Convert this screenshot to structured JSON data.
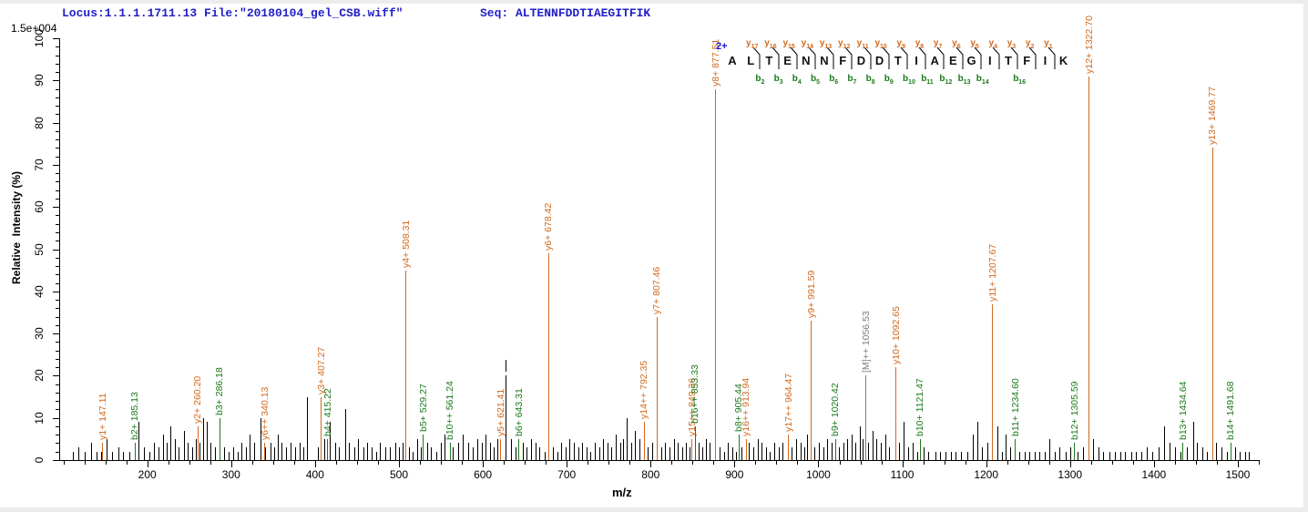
{
  "header": {
    "locus_file": "Locus:1.1.1.1711.13 File:\"20180104_gel_CSB.wiff\"",
    "seq": "Seq: ALTENNFDDTIAEGITFIK"
  },
  "colors": {
    "header_blue": "#2121c8",
    "charge_blue": "#1515d0",
    "y_ion_orange": "#d2691e",
    "b_ion_green": "#1b7a1b",
    "precursor_gray": "#7d7d7d",
    "noise_black": "#000000"
  },
  "fragment_map": {
    "charge": "2+",
    "letters": [
      "A",
      "L",
      "T",
      "E",
      "N",
      "N",
      "F",
      "D",
      "D",
      "T",
      "I",
      "A",
      "E",
      "G",
      "I",
      "T",
      "F",
      "I",
      "K"
    ],
    "dividers": [
      {
        "y": "y17",
        "b": "b2"
      },
      {
        "y": "y16",
        "b": "b3"
      },
      {
        "y": "y15",
        "b": "b4"
      },
      {
        "y": "y14",
        "b": "b5"
      },
      {
        "y": "y13",
        "b": "b6"
      },
      {
        "y": "y12",
        "b": "b7"
      },
      {
        "y": "y11",
        "b": "b8"
      },
      {
        "y": "y10",
        "b": "b9"
      },
      {
        "y": "y9",
        "b": "b10"
      },
      {
        "y": "y8",
        "b": "b11"
      },
      {
        "y": "y7",
        "b": "b12"
      },
      {
        "y": "y6",
        "b": "b13"
      },
      {
        "y": "y5",
        "b": "b14"
      },
      {
        "y": "y4",
        "b": null
      },
      {
        "y": "y3",
        "b": "b16"
      },
      {
        "y": "y2",
        "b": null
      },
      {
        "y": "y1",
        "b": null
      }
    ]
  },
  "chart_data": {
    "type": "bar",
    "subtype": "ms2-peak-spectrum",
    "title": "",
    "xlabel": "m/z",
    "ylabel": "Relative  Intensity (%)",
    "max_intensity": "1.5e+004",
    "xlim": [
      95,
      1525
    ],
    "ylim": [
      0,
      100
    ],
    "x_major_ticks": [
      200,
      300,
      400,
      500,
      600,
      700,
      800,
      900,
      1000,
      1100,
      1200,
      1300,
      1400,
      1500
    ],
    "x_minor_step": 25,
    "y_major_step": 10,
    "y_minor_step": 2,
    "grid": false,
    "annotated_peaks": [
      {
        "label": "y1+ 147.11",
        "mz": 147.11,
        "intensity_pct": 4,
        "ion": "y"
      },
      {
        "label": "b2+ 185.13",
        "mz": 185.13,
        "intensity_pct": 4,
        "ion": "b"
      },
      {
        "label": "y2+ 260.20",
        "mz": 260.2,
        "intensity_pct": 8,
        "ion": "y"
      },
      {
        "label": "b3+ 286.18",
        "mz": 286.18,
        "intensity_pct": 10,
        "ion": "b"
      },
      {
        "label": "y6++ 340.13",
        "mz": 340.13,
        "intensity_pct": 4,
        "ion": "y"
      },
      {
        "label": "y3+ 407.27",
        "mz": 407.27,
        "intensity_pct": 15,
        "ion": "y"
      },
      {
        "label": "b4+ 415.22",
        "mz": 415.22,
        "intensity_pct": 5,
        "ion": "b"
      },
      {
        "label": "y4+ 508.31",
        "mz": 508.31,
        "intensity_pct": 45,
        "ion": "y"
      },
      {
        "label": "b5+ 529.27",
        "mz": 529.27,
        "intensity_pct": 6,
        "ion": "b"
      },
      {
        "label": "b10++ 561.24",
        "mz": 561.24,
        "intensity_pct": 4,
        "ion": "b"
      },
      {
        "label": "y5+ 621.41",
        "mz": 621.41,
        "intensity_pct": 5,
        "ion": "y"
      },
      {
        "label": "b6+ 643.31",
        "mz": 643.31,
        "intensity_pct": 5,
        "ion": "b"
      },
      {
        "label": "y6+ 678.42",
        "mz": 678.42,
        "intensity_pct": 49,
        "ion": "y"
      },
      {
        "label": "y14++ 792.35",
        "mz": 792.35,
        "intensity_pct": 9,
        "ion": "y"
      },
      {
        "label": "y7+ 807.46",
        "mz": 807.46,
        "intensity_pct": 34,
        "ion": "y"
      },
      {
        "label": "y15++ 849.36",
        "mz": 849.36,
        "intensity_pct": 5,
        "ion": "y"
      },
      {
        "label": "b16++ 853.33",
        "mz": 853.33,
        "intensity_pct": 8,
        "ion": "b"
      },
      {
        "label": "y8+ 877.51",
        "mz": 877.51,
        "intensity_pct": 88,
        "ion": "y"
      },
      {
        "label": "b8+ 905.44",
        "mz": 905.44,
        "intensity_pct": 6,
        "ion": "b"
      },
      {
        "label": "y16++ 913.94",
        "mz": 913.94,
        "intensity_pct": 5,
        "ion": "y"
      },
      {
        "label": "y17++ 964.47",
        "mz": 964.47,
        "intensity_pct": 6,
        "ion": "y"
      },
      {
        "label": "y9+ 991.59",
        "mz": 991.59,
        "intensity_pct": 33,
        "ion": "y"
      },
      {
        "label": "b9+ 1020.42",
        "mz": 1020.42,
        "intensity_pct": 5,
        "ion": "b"
      },
      {
        "label": "[M]++ 1056.53",
        "mz": 1056.53,
        "intensity_pct": 20,
        "ion": "M"
      },
      {
        "label": "y10+ 1092.65",
        "mz": 1092.65,
        "intensity_pct": 22,
        "ion": "y"
      },
      {
        "label": "b10+ 1121.47",
        "mz": 1121.47,
        "intensity_pct": 5,
        "ion": "b"
      },
      {
        "label": "y11+ 1207.67",
        "mz": 1207.67,
        "intensity_pct": 37,
        "ion": "y"
      },
      {
        "label": "b11+ 1234.60",
        "mz": 1234.6,
        "intensity_pct": 5,
        "ion": "b"
      },
      {
        "label": "b12+ 1305.59",
        "mz": 1305.59,
        "intensity_pct": 4,
        "ion": "b"
      },
      {
        "label": "y12+ 1322.70",
        "mz": 1322.7,
        "intensity_pct": 91,
        "ion": "y"
      },
      {
        "label": "b13+ 1434.64",
        "mz": 1434.64,
        "intensity_pct": 4,
        "ion": "b"
      },
      {
        "label": "y13+ 1469.77",
        "mz": 1469.77,
        "intensity_pct": 74,
        "ion": "y"
      },
      {
        "label": "b14+ 1491.68",
        "mz": 1491.68,
        "intensity_pct": 4,
        "ion": "b"
      }
    ],
    "floating_tick": {
      "mz": 628,
      "from_pct": 21,
      "to_pct": 23.8
    },
    "noise_peaks": [
      [
        112,
        2
      ],
      [
        118,
        3
      ],
      [
        126,
        2
      ],
      [
        134,
        4
      ],
      [
        140,
        2
      ],
      [
        146,
        2
      ],
      [
        152,
        5
      ],
      [
        158,
        2
      ],
      [
        166,
        3
      ],
      [
        172,
        2
      ],
      [
        179,
        2
      ],
      [
        190,
        9
      ],
      [
        196,
        3
      ],
      [
        203,
        2
      ],
      [
        208,
        4
      ],
      [
        214,
        3
      ],
      [
        219,
        6
      ],
      [
        224,
        4
      ],
      [
        228,
        8
      ],
      [
        233,
        5
      ],
      [
        238,
        3
      ],
      [
        244,
        7
      ],
      [
        249,
        4
      ],
      [
        254,
        3
      ],
      [
        258,
        5
      ],
      [
        263,
        4
      ],
      [
        267,
        10
      ],
      [
        271,
        9
      ],
      [
        276,
        4
      ],
      [
        281,
        3
      ],
      [
        287,
        2
      ],
      [
        292,
        3
      ],
      [
        297,
        2
      ],
      [
        303,
        3
      ],
      [
        308,
        2
      ],
      [
        313,
        4
      ],
      [
        318,
        3
      ],
      [
        323,
        6
      ],
      [
        328,
        4
      ],
      [
        335,
        10
      ],
      [
        341,
        3
      ],
      [
        347,
        4
      ],
      [
        352,
        3
      ],
      [
        356,
        6
      ],
      [
        361,
        4
      ],
      [
        366,
        3
      ],
      [
        371,
        4
      ],
      [
        377,
        3
      ],
      [
        382,
        4
      ],
      [
        386,
        3
      ],
      [
        391,
        15
      ],
      [
        404,
        3
      ],
      [
        411,
        5
      ],
      [
        418,
        9
      ],
      [
        424,
        4
      ],
      [
        429,
        3
      ],
      [
        436,
        12
      ],
      [
        441,
        4
      ],
      [
        447,
        3
      ],
      [
        452,
        5
      ],
      [
        458,
        3
      ],
      [
        463,
        4
      ],
      [
        468,
        3
      ],
      [
        473,
        2
      ],
      [
        478,
        4
      ],
      [
        484,
        3
      ],
      [
        490,
        3
      ],
      [
        496,
        4
      ],
      [
        501,
        3
      ],
      [
        505,
        4
      ],
      [
        512,
        3
      ],
      [
        517,
        2
      ],
      [
        522,
        5
      ],
      [
        527,
        3
      ],
      [
        534,
        4
      ],
      [
        539,
        3
      ],
      [
        545,
        2
      ],
      [
        550,
        4
      ],
      [
        555,
        6
      ],
      [
        565,
        3
      ],
      [
        571,
        4
      ],
      [
        577,
        6
      ],
      [
        583,
        4
      ],
      [
        589,
        3
      ],
      [
        594,
        5
      ],
      [
        599,
        4
      ],
      [
        604,
        6
      ],
      [
        609,
        4
      ],
      [
        614,
        3
      ],
      [
        618,
        5
      ],
      [
        628,
        20
      ],
      [
        634,
        5
      ],
      [
        640,
        3
      ],
      [
        648,
        4
      ],
      [
        653,
        3
      ],
      [
        658,
        5
      ],
      [
        663,
        4
      ],
      [
        668,
        3
      ],
      [
        674,
        2
      ],
      [
        684,
        3
      ],
      [
        689,
        2
      ],
      [
        694,
        4
      ],
      [
        699,
        3
      ],
      [
        704,
        5
      ],
      [
        709,
        4
      ],
      [
        714,
        3
      ],
      [
        719,
        4
      ],
      [
        724,
        3
      ],
      [
        729,
        2
      ],
      [
        734,
        4
      ],
      [
        739,
        3
      ],
      [
        744,
        5
      ],
      [
        749,
        4
      ],
      [
        754,
        3
      ],
      [
        759,
        6
      ],
      [
        764,
        4
      ],
      [
        768,
        5
      ],
      [
        772,
        10
      ],
      [
        777,
        4
      ],
      [
        782,
        7
      ],
      [
        787,
        5
      ],
      [
        797,
        3
      ],
      [
        802,
        4
      ],
      [
        813,
        3
      ],
      [
        818,
        4
      ],
      [
        823,
        3
      ],
      [
        828,
        5
      ],
      [
        833,
        4
      ],
      [
        838,
        3
      ],
      [
        843,
        4
      ],
      [
        847,
        3
      ],
      [
        858,
        4
      ],
      [
        862,
        3
      ],
      [
        867,
        5
      ],
      [
        871,
        4
      ],
      [
        883,
        3
      ],
      [
        888,
        2
      ],
      [
        893,
        4
      ],
      [
        898,
        3
      ],
      [
        902,
        2
      ],
      [
        909,
        3
      ],
      [
        918,
        4
      ],
      [
        923,
        3
      ],
      [
        928,
        5
      ],
      [
        933,
        4
      ],
      [
        938,
        3
      ],
      [
        943,
        2
      ],
      [
        948,
        4
      ],
      [
        953,
        3
      ],
      [
        958,
        4
      ],
      [
        969,
        3
      ],
      [
        974,
        5
      ],
      [
        979,
        4
      ],
      [
        984,
        3
      ],
      [
        987,
        6
      ],
      [
        996,
        3
      ],
      [
        1001,
        4
      ],
      [
        1006,
        3
      ],
      [
        1011,
        5
      ],
      [
        1016,
        4
      ],
      [
        1025,
        3
      ],
      [
        1030,
        4
      ],
      [
        1035,
        5
      ],
      [
        1040,
        6
      ],
      [
        1045,
        4
      ],
      [
        1050,
        8
      ],
      [
        1053,
        5
      ],
      [
        1060,
        4
      ],
      [
        1065,
        7
      ],
      [
        1070,
        5
      ],
      [
        1075,
        4
      ],
      [
        1080,
        6
      ],
      [
        1085,
        3
      ],
      [
        1097,
        4
      ],
      [
        1102,
        9
      ],
      [
        1107,
        3
      ],
      [
        1113,
        4
      ],
      [
        1118,
        2
      ],
      [
        1126,
        3
      ],
      [
        1131,
        2
      ],
      [
        1140,
        2
      ],
      [
        1146,
        2
      ],
      [
        1152,
        2
      ],
      [
        1158,
        2
      ],
      [
        1164,
        2
      ],
      [
        1170,
        2
      ],
      [
        1178,
        2
      ],
      [
        1185,
        6
      ],
      [
        1190,
        9
      ],
      [
        1196,
        3
      ],
      [
        1202,
        4
      ],
      [
        1214,
        8
      ],
      [
        1219,
        2
      ],
      [
        1224,
        6
      ],
      [
        1229,
        3
      ],
      [
        1240,
        2
      ],
      [
        1246,
        2
      ],
      [
        1252,
        2
      ],
      [
        1258,
        2
      ],
      [
        1264,
        2
      ],
      [
        1270,
        2
      ],
      [
        1276,
        5
      ],
      [
        1282,
        2
      ],
      [
        1288,
        3
      ],
      [
        1295,
        2
      ],
      [
        1301,
        3
      ],
      [
        1310,
        2
      ],
      [
        1316,
        3
      ],
      [
        1328,
        5
      ],
      [
        1334,
        3
      ],
      [
        1340,
        2
      ],
      [
        1347,
        2
      ],
      [
        1354,
        2
      ],
      [
        1360,
        2
      ],
      [
        1366,
        2
      ],
      [
        1373,
        2
      ],
      [
        1379,
        2
      ],
      [
        1386,
        2
      ],
      [
        1392,
        3
      ],
      [
        1399,
        2
      ],
      [
        1406,
        3
      ],
      [
        1413,
        8
      ],
      [
        1419,
        4
      ],
      [
        1426,
        3
      ],
      [
        1432,
        2
      ],
      [
        1440,
        3
      ],
      [
        1447,
        9
      ],
      [
        1452,
        4
      ],
      [
        1458,
        3
      ],
      [
        1464,
        2
      ],
      [
        1475,
        4
      ],
      [
        1481,
        3
      ],
      [
        1487,
        2
      ],
      [
        1497,
        3
      ],
      [
        1503,
        2
      ],
      [
        1509,
        2
      ],
      [
        1514,
        2
      ]
    ]
  }
}
